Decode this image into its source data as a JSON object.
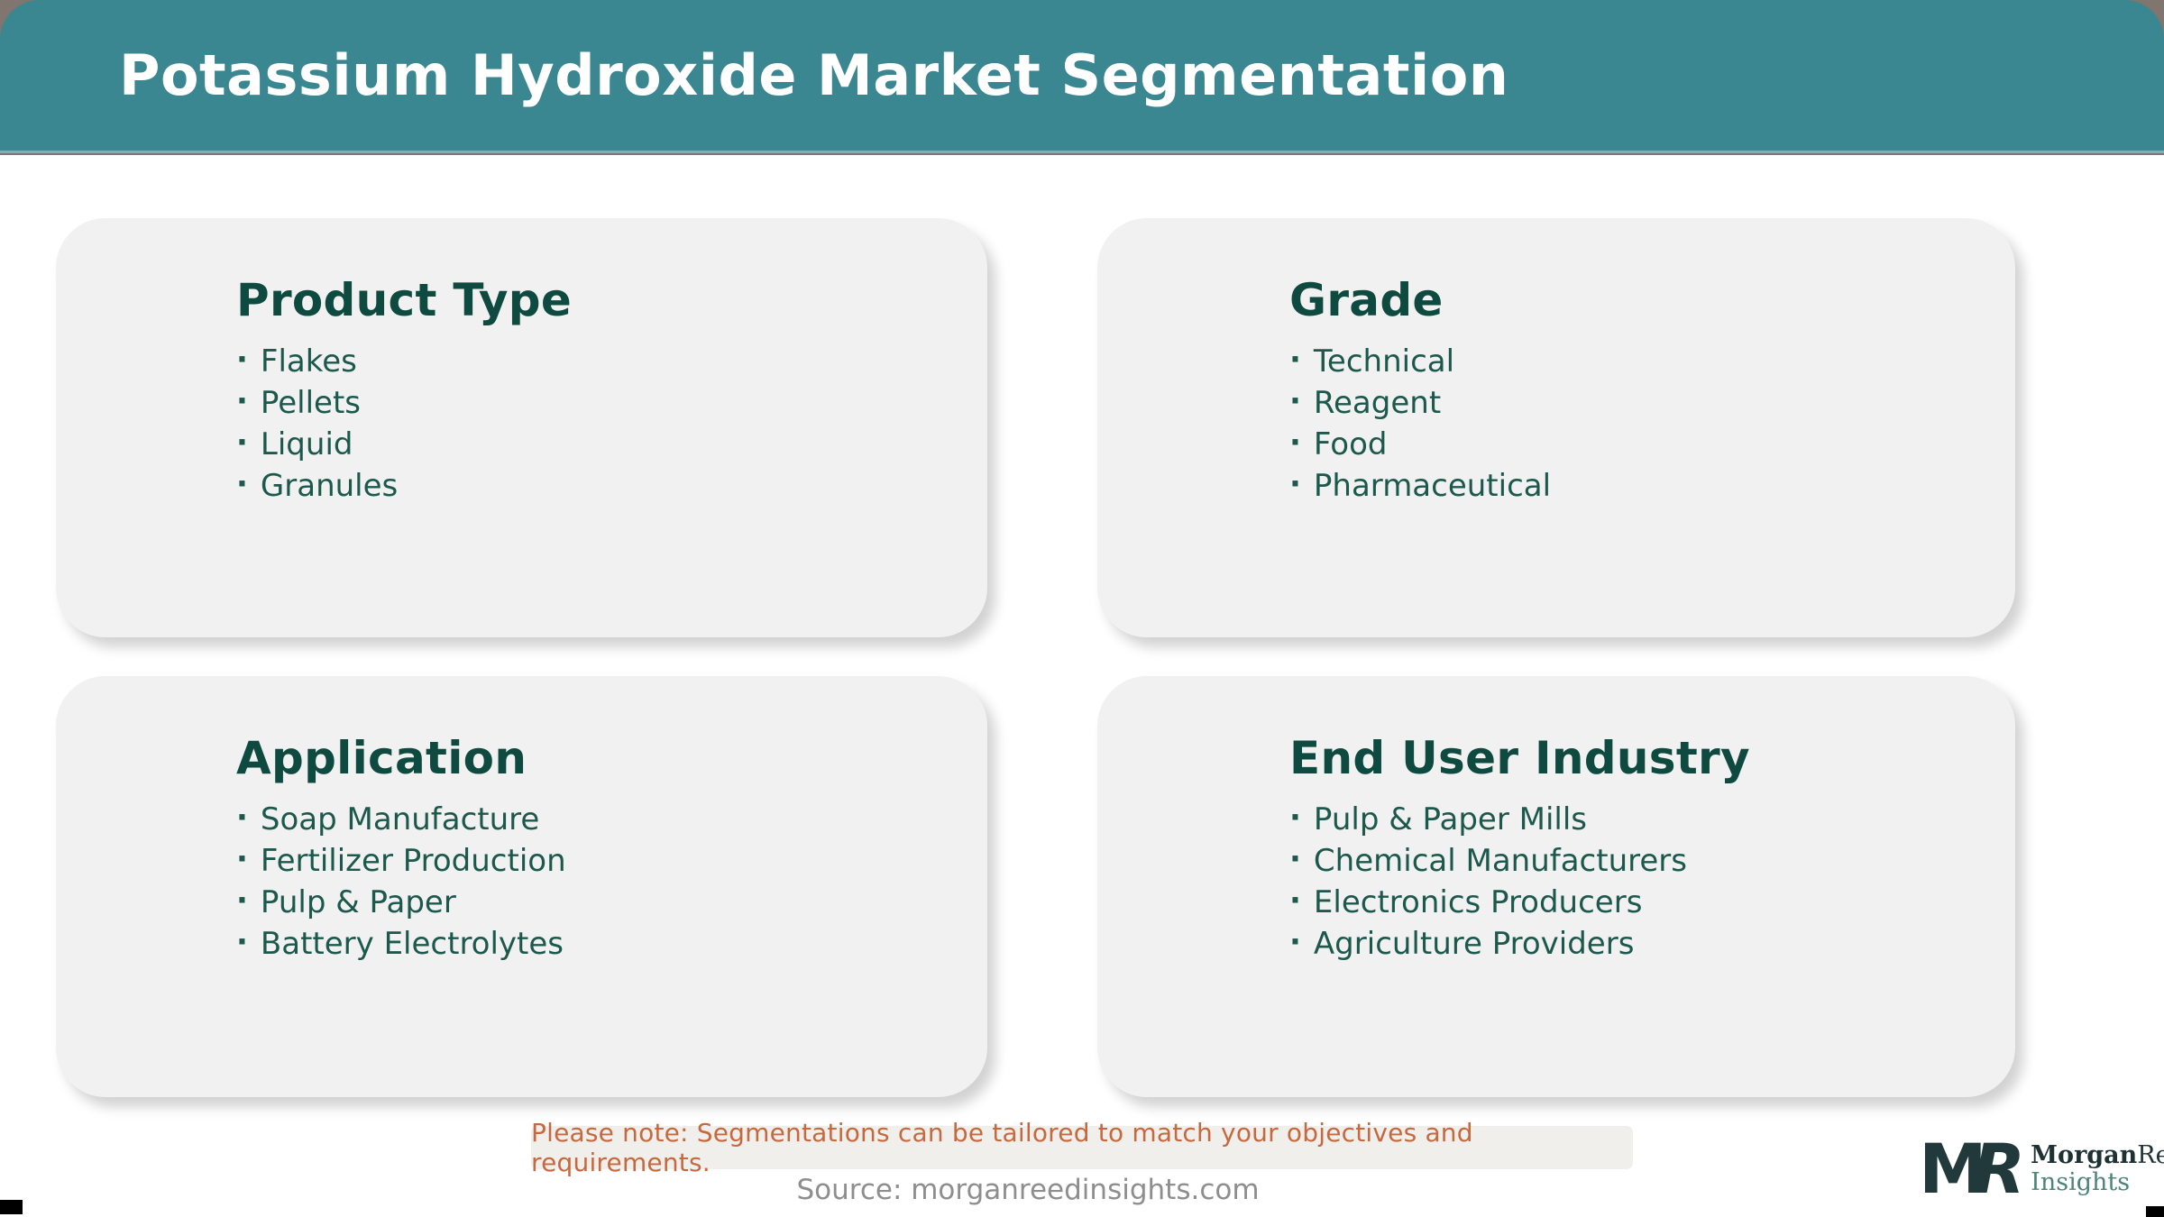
{
  "header": {
    "title": "Potassium Hydroxide Market Segmentation"
  },
  "bullet": "·",
  "cards": [
    {
      "title": "Product Type",
      "items": [
        "Flakes",
        "Pellets",
        "Liquid",
        "Granules"
      ]
    },
    {
      "title": "Grade",
      "items": [
        "Technical",
        "Reagent",
        "Food",
        "Pharmaceutical"
      ]
    },
    {
      "title": "Application",
      "items": [
        "Soap Manufacture",
        "Fertilizer Production",
        "Pulp & Paper",
        "Battery Electrolytes"
      ]
    },
    {
      "title": "End User Industry",
      "items": [
        "Pulp & Paper Mills",
        "Chemical Manufacturers",
        "Electronics Producers",
        "Agriculture Providers"
      ]
    }
  ],
  "note": "Please note: Segmentations can be tailored to match your objectives and requirements.",
  "source": "Source: morganreedinsights.com",
  "logo": {
    "monogram_m": "M",
    "monogram_r": "R",
    "name_bold": "Morgan",
    "name_regular": "Reed",
    "subtitle": "Insights"
  },
  "colors": {
    "header_teal": "#3a8791",
    "header_corner_bg": "#81756f",
    "card_background": "#f1f1f1",
    "card_title_teal": "#0f4a40",
    "card_item_teal": "#1c584c",
    "note_orange": "#c7693f",
    "note_background": "#f0efec",
    "source_gray": "#8e8e8e",
    "logo_dark": "#21393a",
    "logo_teal": "#4c8577"
  }
}
